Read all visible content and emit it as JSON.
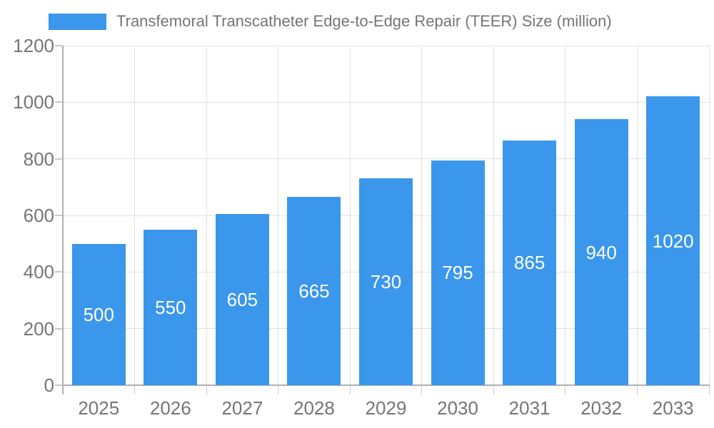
{
  "legend": {
    "label": "Transfemoral Transcatheter Edge-to-Edge Repair (TEER) Size (million)"
  },
  "colors": {
    "bar": "#3b97eb",
    "axis_text": "#757575",
    "data_label_text": "#ffffff",
    "axis_line": "#b0b0b0",
    "gridline": "#e0e0e0",
    "tick": "#c9c9c9",
    "background": "#ffffff"
  },
  "chart_data": {
    "type": "bar",
    "title": "Transfemoral Transcatheter Edge-to-Edge Repair (TEER) Size (million)",
    "categories": [
      "2025",
      "2026",
      "2027",
      "2028",
      "2029",
      "2030",
      "2031",
      "2032",
      "2033"
    ],
    "values": [
      500,
      550,
      605,
      665,
      730,
      795,
      865,
      940,
      1020
    ],
    "series": [
      {
        "name": "Transfemoral Transcatheter Edge-to-Edge Repair (TEER) Size (million)",
        "values": [
          500,
          550,
          605,
          665,
          730,
          795,
          865,
          940,
          1020
        ]
      }
    ],
    "xlabel": "",
    "ylabel": "",
    "ylim": [
      0,
      1200
    ],
    "yticks": [
      0,
      200,
      400,
      600,
      800,
      1000,
      1200
    ],
    "grid": true,
    "legend_position": "top-left",
    "data_labels_position": "inside-center"
  }
}
